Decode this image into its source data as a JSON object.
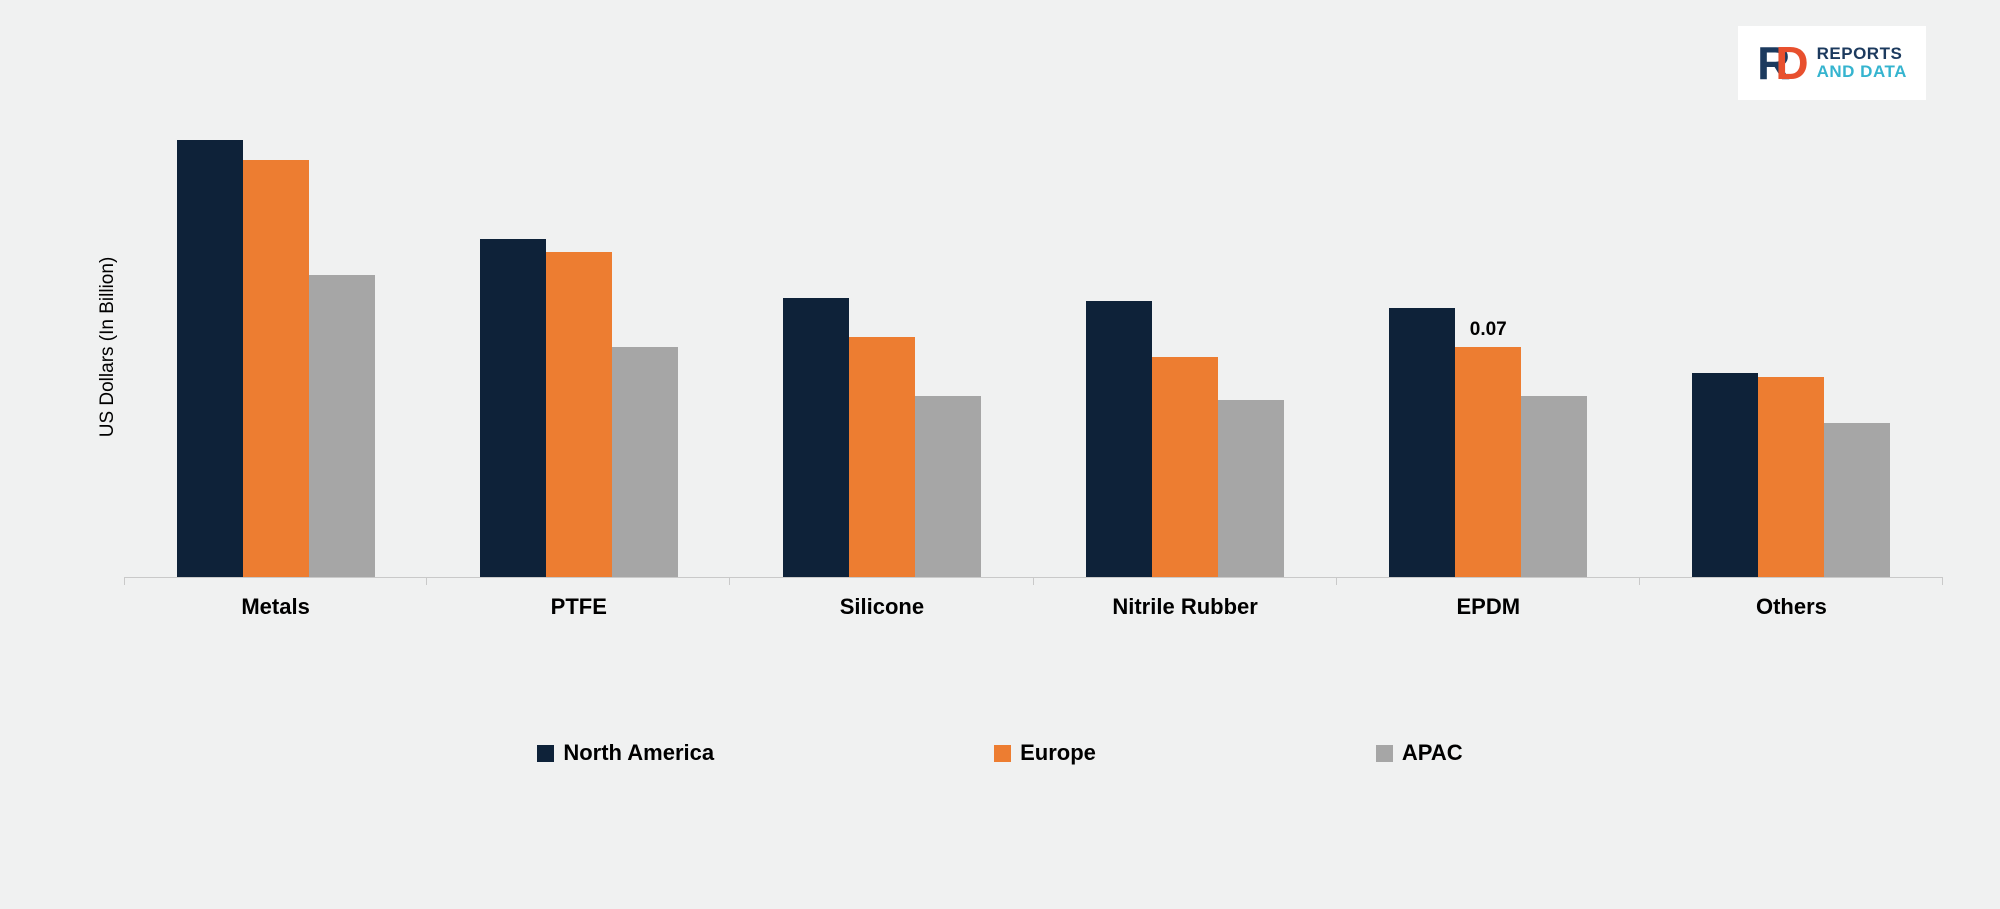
{
  "background": "#f0f1f1",
  "logo": {
    "mark_r": "R",
    "mark_d": "D",
    "line1": "REPORTS",
    "line2": "AND DATA",
    "navy": "#1c3a5e",
    "orange": "#e8502e",
    "cyan": "#35b4cf"
  },
  "chart_data": {
    "type": "bar",
    "title": "",
    "xlabel": "",
    "ylabel": "US Dollars  (In Billion)",
    "categories": [
      "Metals",
      "PTFE",
      "Silicone",
      "Nitrile Rubber",
      "EPDM",
      "Others"
    ],
    "series": [
      {
        "name": "North America",
        "color": "#0e2239",
        "values": [
          0.133,
          0.103,
          0.085,
          0.084,
          0.082,
          0.062
        ]
      },
      {
        "name": "Europe",
        "color": "#ed7d31",
        "values": [
          0.127,
          0.099,
          0.073,
          0.067,
          0.07,
          0.061
        ]
      },
      {
        "name": "APAC",
        "color": "#a6a6a6",
        "values": [
          0.092,
          0.07,
          0.055,
          0.054,
          0.055,
          0.047
        ]
      }
    ],
    "ylim": [
      0,
      0.14
    ],
    "grid": false,
    "legend_position": "bottom",
    "data_labels": [
      {
        "series": "Europe",
        "category": "EPDM",
        "text": "0.07"
      }
    ]
  }
}
